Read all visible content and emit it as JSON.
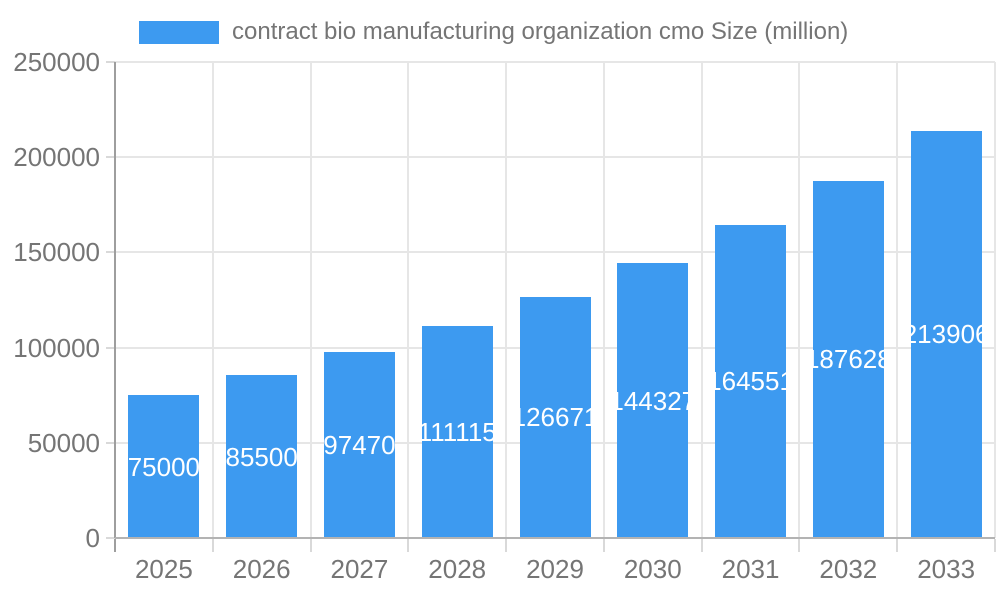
{
  "legend": {
    "label": "contract bio manufacturing organization cmo Size (million)"
  },
  "chart_data": {
    "type": "bar",
    "title": "contract bio manufacturing organization cmo Size (million)",
    "series_name": "contract bio manufacturing organization cmo Size (million)",
    "categories": [
      "2025",
      "2026",
      "2027",
      "2028",
      "2029",
      "2030",
      "2031",
      "2032",
      "2033"
    ],
    "values": [
      75000,
      85500,
      97470,
      111115,
      126671,
      144327,
      164551,
      187628,
      213906
    ],
    "xlabel": "",
    "ylabel": "",
    "ylim": [
      0,
      250000
    ],
    "yticks": [
      0,
      50000,
      100000,
      150000,
      200000,
      250000
    ],
    "grid": true,
    "legend_position": "top-left",
    "bar_color": "#3d9af0",
    "value_label_color": "#ffffff",
    "axis_text_color": "#757575",
    "value_labels_position": "centered-inside-bars"
  }
}
